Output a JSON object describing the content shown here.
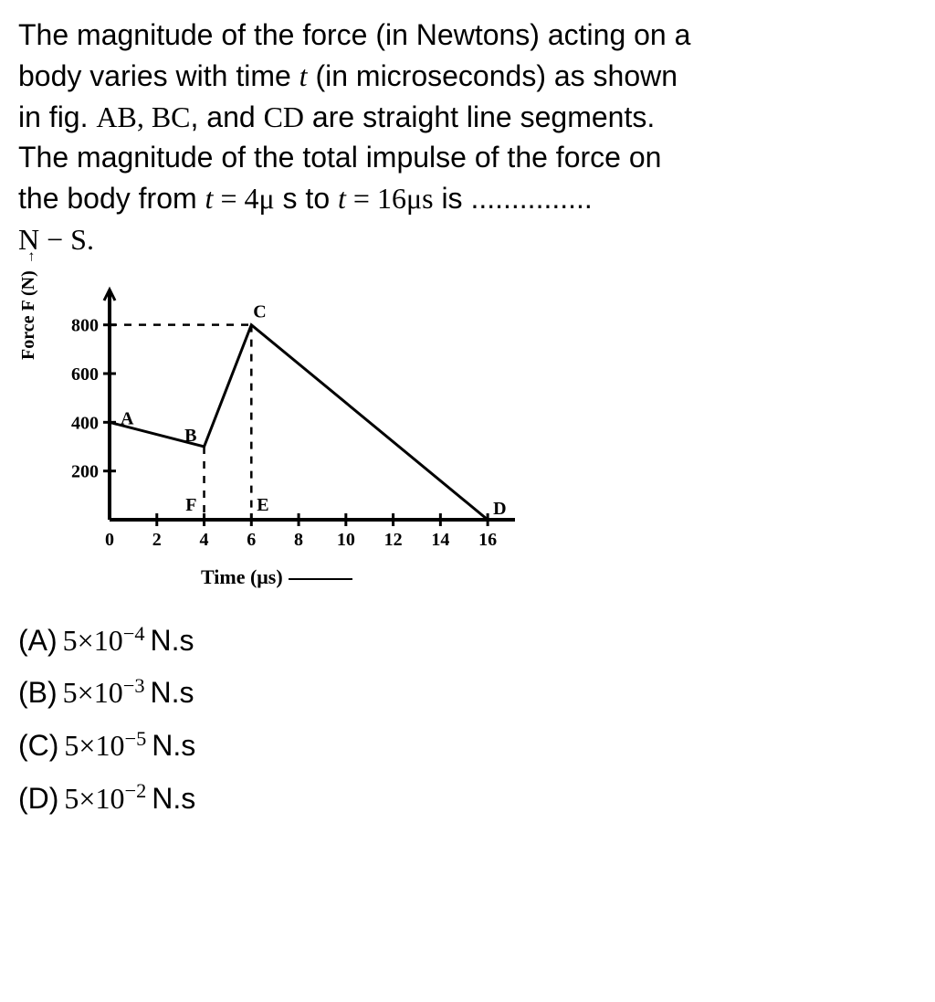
{
  "question": {
    "line1": "The magnitude of the force (in Newtons) acting on a",
    "line2_pre": "body varies with time ",
    "line2_var": "t",
    "line2_post": " (in microseconds) as shown",
    "line3_pre": "in fig. ",
    "line3_seg1": "AB, BC",
    "line3_mid": ", and ",
    "line3_seg2": "CD",
    "line3_post": " are straight line segments.",
    "line4": "The magnitude of the total impulse of the force on",
    "line5_pre": "the body from ",
    "line5_eq1_lhs": "t",
    "line5_eq1_rhs": " = 4μ",
    "line5_mid": " s to ",
    "line5_eq2_lhs": "t",
    "line5_eq2_rhs": " = 16μs",
    "line5_post": " is ...............",
    "line6": "N − S."
  },
  "chart": {
    "type": "line",
    "y_label_pre": "Force F (N)",
    "x_label_pre": "Time (μs)",
    "background_color": "#ffffff",
    "axis_color": "#000000",
    "line_color": "#000000",
    "dash_color": "#000000",
    "line_width": 3,
    "dash_width": 2.5,
    "y_ticks": [
      200,
      400,
      600,
      800
    ],
    "y_tick_labels": [
      "200",
      "400",
      "600",
      "800"
    ],
    "x_ticks": [
      0,
      2,
      4,
      6,
      8,
      10,
      12,
      14,
      16
    ],
    "x_tick_labels": [
      "0",
      "2",
      "4",
      "6",
      "8",
      "10",
      "12",
      "14",
      "16"
    ],
    "points": {
      "A": {
        "x": 0,
        "y": 400
      },
      "B": {
        "x": 4,
        "y": 300
      },
      "C": {
        "x": 6,
        "y": 800
      },
      "D": {
        "x": 16,
        "y": 0
      },
      "E": {
        "x": 6,
        "y": 0
      },
      "F": {
        "x": 4,
        "y": 0
      }
    },
    "point_labels": {
      "A": "A",
      "B": "B",
      "C": "C",
      "D": "D",
      "E": "E",
      "F": "F"
    },
    "ylim": [
      0,
      900
    ],
    "xlim": [
      0,
      17
    ]
  },
  "options": {
    "A": {
      "prefix": "(A)",
      "coef": "5",
      "times": " × ",
      "base": "10",
      "exp": "−4",
      "unit": " N.s"
    },
    "B": {
      "prefix": "(B)",
      "coef": "5",
      "times": " × ",
      "base": "10",
      "exp": "−3",
      "unit": " N.s"
    },
    "C": {
      "prefix": "(C)",
      "coef": "5",
      "times": " × ",
      "base": "10",
      "exp": "−5",
      "unit": " N.s"
    },
    "D": {
      "prefix": "(D)",
      "coef": "5",
      "times": " × ",
      "base": "10",
      "exp": "−2",
      "unit": " N.s"
    }
  }
}
